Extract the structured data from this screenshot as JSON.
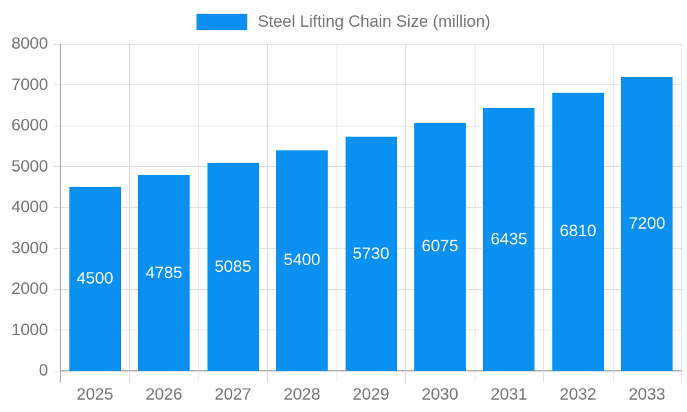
{
  "chart_data": {
    "type": "bar",
    "title": "Steel Lifting Chain Size (million)",
    "legend_position": "top",
    "categories": [
      "2025",
      "2026",
      "2027",
      "2028",
      "2029",
      "2030",
      "2031",
      "2032",
      "2033"
    ],
    "values": [
      4500,
      4785,
      5085,
      5400,
      5730,
      6075,
      6435,
      6810,
      7200
    ],
    "value_labels_shown": true,
    "xlabel": "",
    "ylabel": "",
    "ylim": [
      0,
      8000
    ],
    "yticks": [
      0,
      1000,
      2000,
      3000,
      4000,
      5000,
      6000,
      7000,
      8000
    ],
    "grid": true,
    "colors": {
      "bar": "#0a90f0",
      "value_label": "#ffffff",
      "axis_text": "#757575",
      "gridline": "#d9d9d9",
      "axis_line": "#b3b3b3",
      "background": "#ffffff"
    }
  }
}
